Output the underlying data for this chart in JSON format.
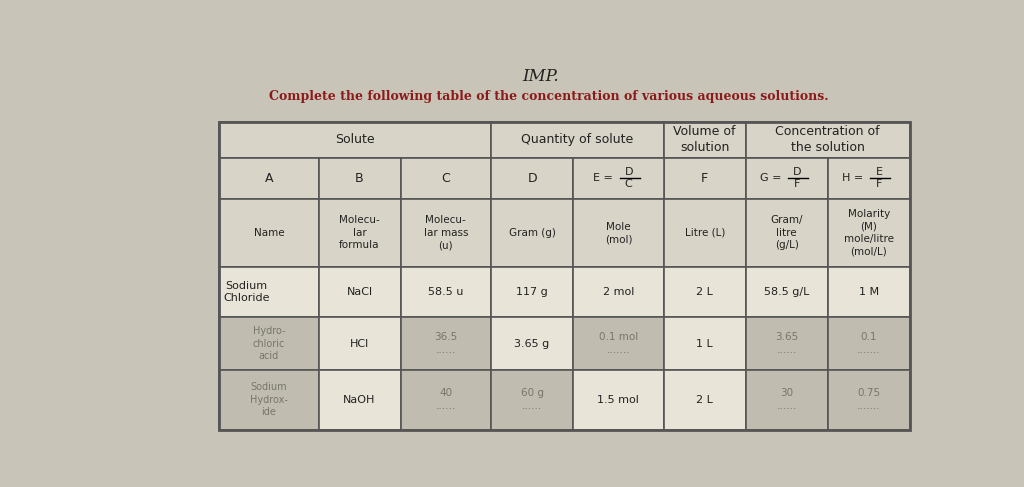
{
  "title_imp": "IMP.",
  "title_main": "Complete the following table of the concentration of various aqueous solutions.",
  "page_bg": "#c8c4b8",
  "table_outer_bg": "#dedad0",
  "cell_white": "#e8e4d8",
  "cell_light": "#d8d4c8",
  "answer_cell_bg": "#c0bdb0",
  "border_color": "#555555",
  "text_color": "#222222",
  "title_color": "#8B1a1a",
  "imp_color": "#222222",
  "figsize": [
    10.24,
    4.87
  ],
  "dpi": 100,
  "row1_texts": [
    "Solute",
    "Quantity of solute",
    "Volume of\nsolution",
    "Concentration of\nthe solution"
  ],
  "row2_labels": [
    "A",
    "B",
    "C",
    "D",
    "E",
    "F",
    "G",
    "H"
  ],
  "row3_texts": [
    "Name",
    "Molecu-\nlar\nformula",
    "Molecu-\nlar mass\n(u)",
    "Gram (g)",
    "Mole\n(mol)",
    "Litre (L)",
    "Gram/\nlitre\n(g/L)",
    "Molarity\n(M)\nmole/litre\n(mol/L)"
  ],
  "nacl_row": [
    "Sodium\nChloride",
    "NaCl",
    "58.5 u",
    "117 g",
    "2 mol",
    "2 L",
    "58.5 g/L",
    "1 M"
  ],
  "hcl_row_text": [
    "HCl",
    "3.65 g",
    "1 L"
  ],
  "naoh_row_text": [
    "NaOH",
    "1.5 mol",
    "2 L"
  ]
}
